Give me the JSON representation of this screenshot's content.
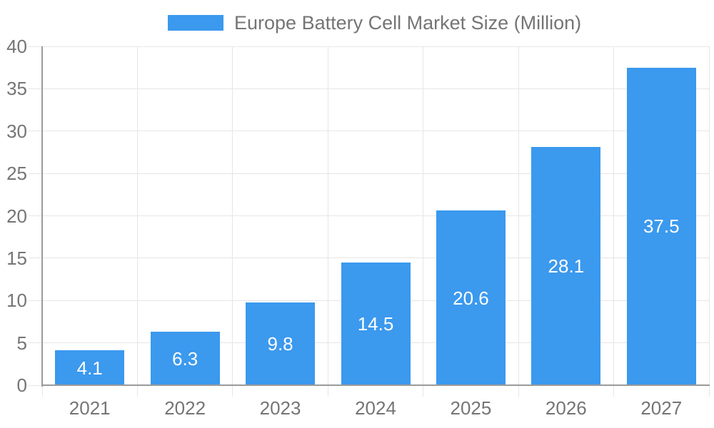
{
  "legend": {
    "series_label": "Europe Battery Cell Market Size (Million)"
  },
  "chart_data": {
    "type": "bar",
    "title": "Europe Battery Cell Market Size (Million)",
    "categories": [
      "2021",
      "2022",
      "2023",
      "2024",
      "2025",
      "2026",
      "2027"
    ],
    "values": [
      4.1,
      6.3,
      9.8,
      14.5,
      20.6,
      28.1,
      37.5
    ],
    "value_labels": [
      "4.1",
      "6.3",
      "9.8",
      "14.5",
      "20.6",
      "28.1",
      "37.5"
    ],
    "yticks": [
      "0",
      "5",
      "10",
      "15",
      "20",
      "25",
      "30",
      "35",
      "40"
    ],
    "xlabel": "",
    "ylabel": "",
    "ylim": [
      0,
      40
    ],
    "ytick_step": 5,
    "grid": true,
    "legend_position": "top",
    "colors": {
      "bar": "#3B99EE",
      "axis_line": "#9a9a9a",
      "gridline": "#e6e6e6",
      "tick_label": "#757575",
      "legend_text": "#757575",
      "value_label": "#ffffff",
      "background": "#ffffff"
    }
  }
}
